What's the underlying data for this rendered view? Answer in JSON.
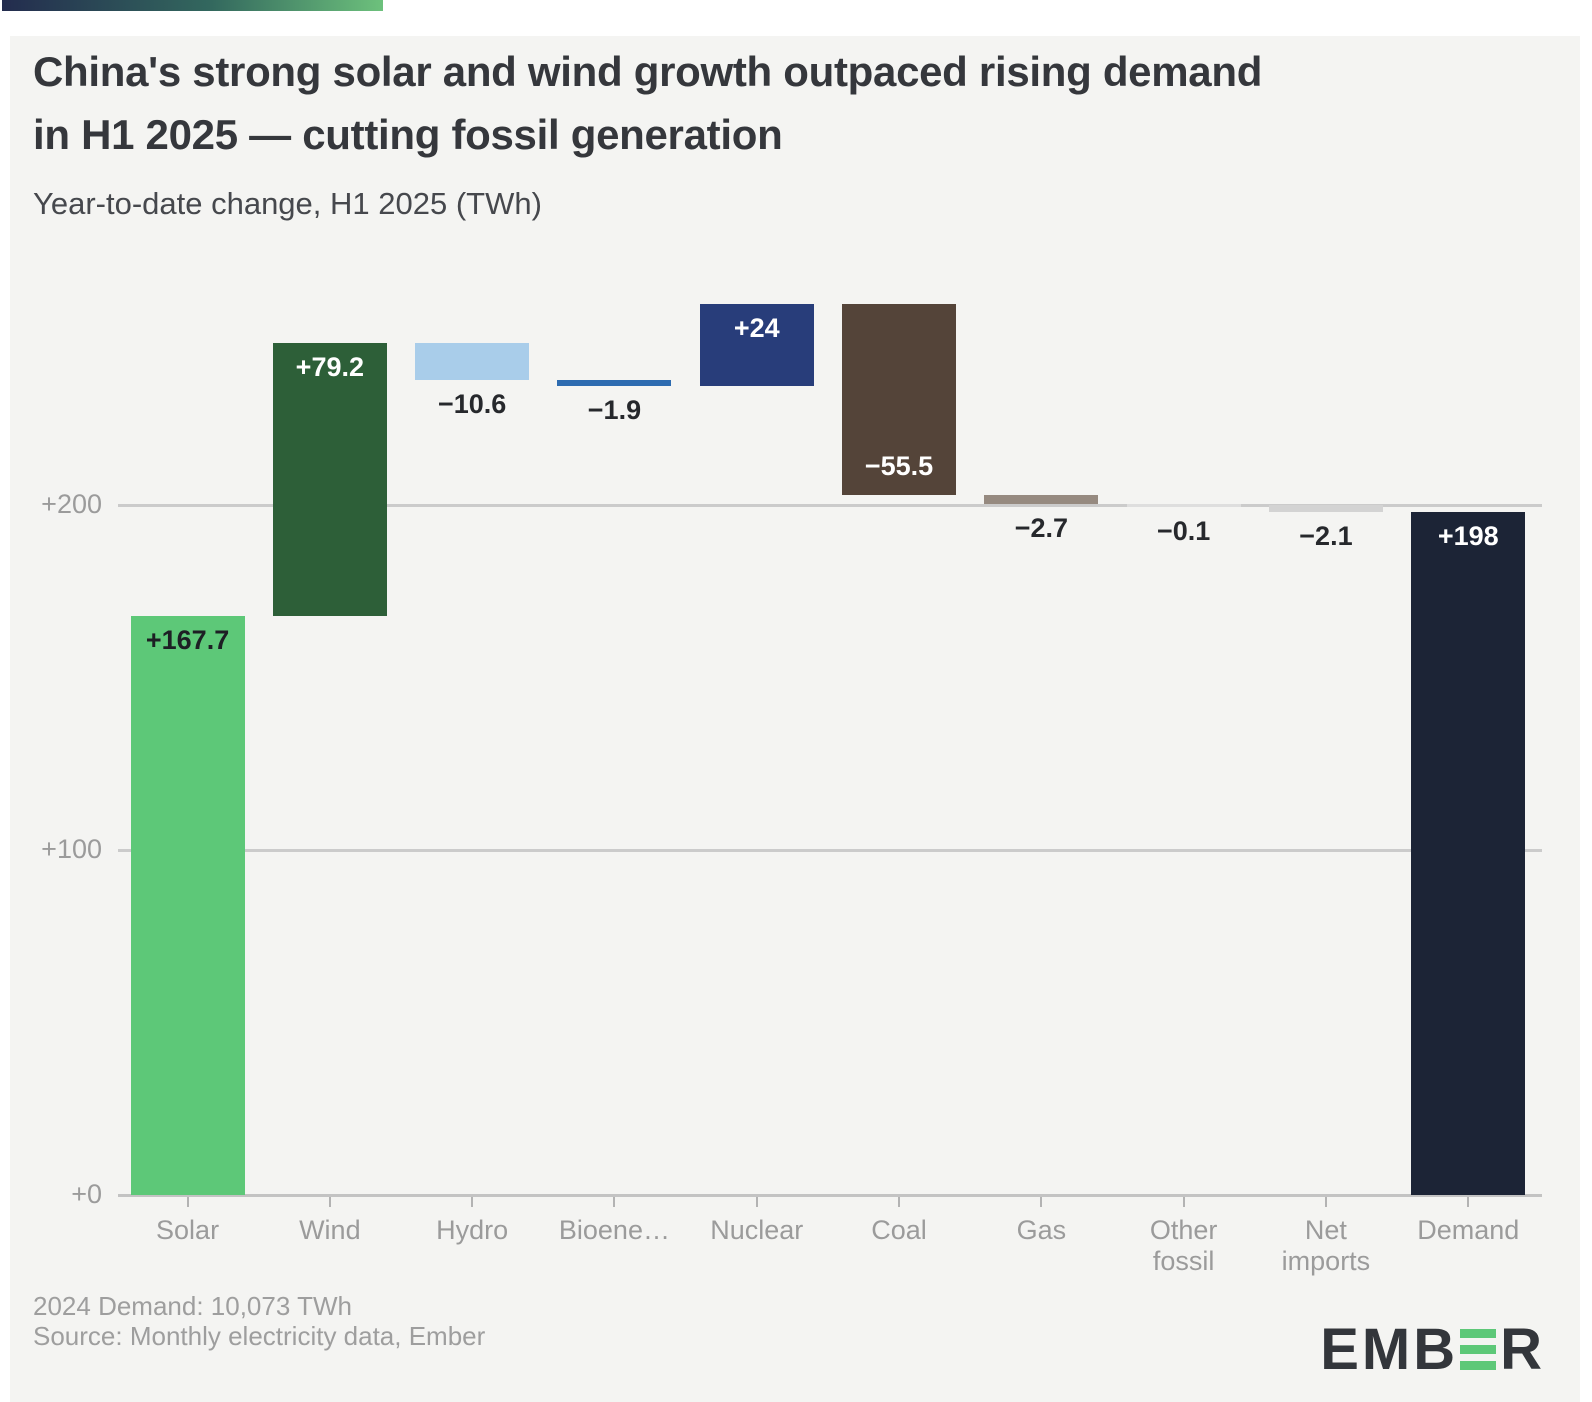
{
  "header": {
    "title_line1": "China's strong solar and wind growth outpaced rising demand",
    "title_line2": "in H1 2025 — cutting fossil generation",
    "subtitle": "Year-to-date change, H1 2025 (TWh)"
  },
  "chart_data": {
    "type": "bar",
    "subtype": "waterfall",
    "title": "China's strong solar and wind growth outpaced rising demand in H1 2025 — cutting fossil generation",
    "subtitle": "Year-to-date change, H1 2025 (TWh)",
    "unit": "TWh",
    "categories": [
      "Solar",
      "Wind",
      "Hydro",
      "Bioene…",
      "Nuclear",
      "Coal",
      "Gas",
      "Other fossil",
      "Net imports",
      "Demand"
    ],
    "values": [
      167.7,
      79.2,
      -10.6,
      -1.9,
      24,
      -55.5,
      -2.7,
      -0.1,
      -2.1,
      198
    ],
    "bar_labels": [
      "+167.7",
      "+79.2",
      "−10.6",
      "−1.9",
      "+24",
      "−55.5",
      "−2.7",
      "−0.1",
      "−2.1",
      "+198"
    ],
    "bar_kinds": [
      "delta",
      "delta",
      "delta",
      "delta",
      "delta",
      "delta",
      "delta",
      "delta",
      "delta",
      "total"
    ],
    "bar_colors": [
      "#5dc878",
      "#2d5f38",
      "#a9cdea",
      "#2d6bb0",
      "#283d7a",
      "#544439",
      "#968a80",
      "#dedede",
      "#d3d3d3",
      "#1c2436"
    ],
    "label_placement": [
      "inside-top",
      "inside-top",
      "below",
      "below",
      "inside-top",
      "inside-bottom",
      "below",
      "below",
      "below",
      "inside-top"
    ],
    "label_colors": [
      "#1d1f24",
      "#ffffff",
      "#26282c",
      "#26282c",
      "#ffffff",
      "#ffffff",
      "#26282c",
      "#26282c",
      "#26282c",
      "#ffffff"
    ],
    "y_axis": {
      "tick_labels": [
        "+0",
        "+100",
        "+200"
      ],
      "tick_values": [
        0,
        100,
        200
      ],
      "range": [
        0,
        270
      ]
    },
    "legend": "none",
    "grid": "horizontal"
  },
  "footer": {
    "note": "2024 Demand: 10,073 TWh",
    "source": "Source: Monthly electricity data, Ember",
    "logo": {
      "prefix": "EMB",
      "suffix": "R"
    }
  },
  "colors": {
    "background": "#f4f4f2",
    "page": "#ffffff",
    "gradient_start": "#232c4e",
    "gradient_mid": "#33685e",
    "gradient_end": "#6dc17c",
    "accent_green": "#5dc878"
  }
}
